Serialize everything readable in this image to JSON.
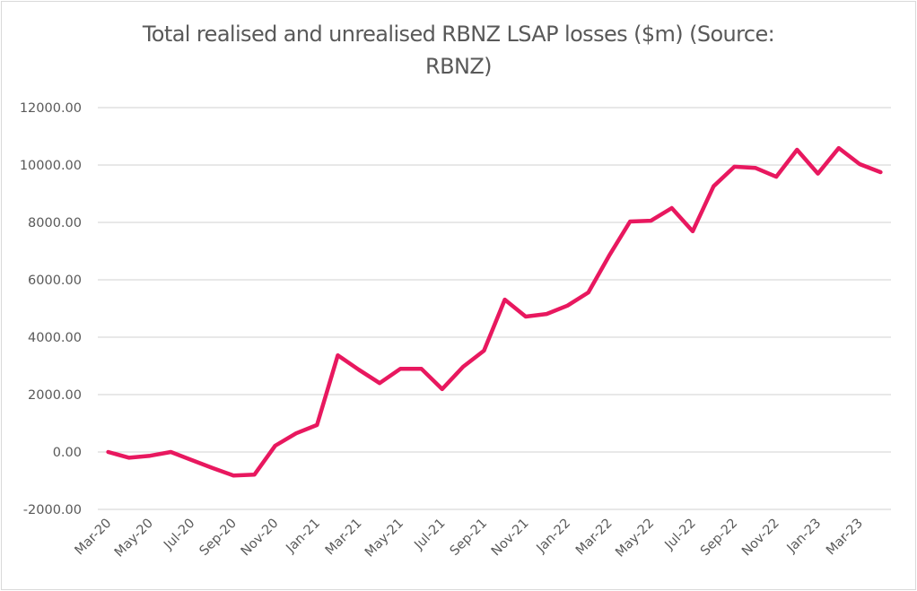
{
  "chart_data": {
    "type": "line",
    "title": "Total realised and unrealised RBNZ LSAP losses ($m) (Source: RBNZ)",
    "title_lines": [
      "Total realised and unrealised RBNZ LSAP losses ($m) (Source:",
      "RBNZ)"
    ],
    "xlabel": "",
    "ylabel": "",
    "ylim": [
      -2000,
      12000
    ],
    "yticks": [
      -2000,
      0,
      2000,
      4000,
      6000,
      8000,
      10000,
      12000
    ],
    "ytick_labels": [
      "-2000.00",
      "0.00",
      "2000.00",
      "4000.00",
      "6000.00",
      "8000.00",
      "10000.00",
      "12000.00"
    ],
    "grid": true,
    "legend": "none",
    "x": [
      "Mar-20",
      "Apr-20",
      "May-20",
      "Jun-20",
      "Jul-20",
      "Aug-20",
      "Sep-20",
      "Oct-20",
      "Nov-20",
      "Dec-20",
      "Jan-21",
      "Feb-21",
      "Mar-21",
      "Apr-21",
      "May-21",
      "Jun-21",
      "Jul-21",
      "Aug-21",
      "Sep-21",
      "Oct-21",
      "Nov-21",
      "Dec-21",
      "Jan-22",
      "Feb-22",
      "Mar-22",
      "Apr-22",
      "May-22",
      "Jun-22",
      "Jul-22",
      "Aug-22",
      "Sep-22",
      "Oct-22",
      "Nov-22",
      "Dec-22",
      "Jan-23",
      "Feb-23",
      "Mar-23",
      "Apr-23"
    ],
    "xtick_labels": [
      "Mar-20",
      "May-20",
      "Jul-20",
      "Sep-20",
      "Nov-20",
      "Jan-21",
      "Mar-21",
      "May-21",
      "Jul-21",
      "Sep-21",
      "Nov-21",
      "Jan-22",
      "Mar-22",
      "May-22",
      "Jul-22",
      "Sep-22",
      "Nov-22",
      "Jan-23",
      "Mar-23"
    ],
    "series": [
      {
        "name": "Total realised and unrealised losses",
        "color": "#E8185F",
        "values": [
          0,
          -200,
          -130,
          0,
          -280,
          -560,
          -820,
          -790,
          220,
          650,
          940,
          3370,
          2870,
          2400,
          2900,
          2900,
          2190,
          2970,
          3530,
          5310,
          4720,
          4810,
          5100,
          5560,
          6840,
          8030,
          8060,
          8500,
          7690,
          9260,
          9940,
          9900,
          9590,
          10530,
          9700,
          10590,
          10030,
          9750
        ]
      }
    ]
  }
}
